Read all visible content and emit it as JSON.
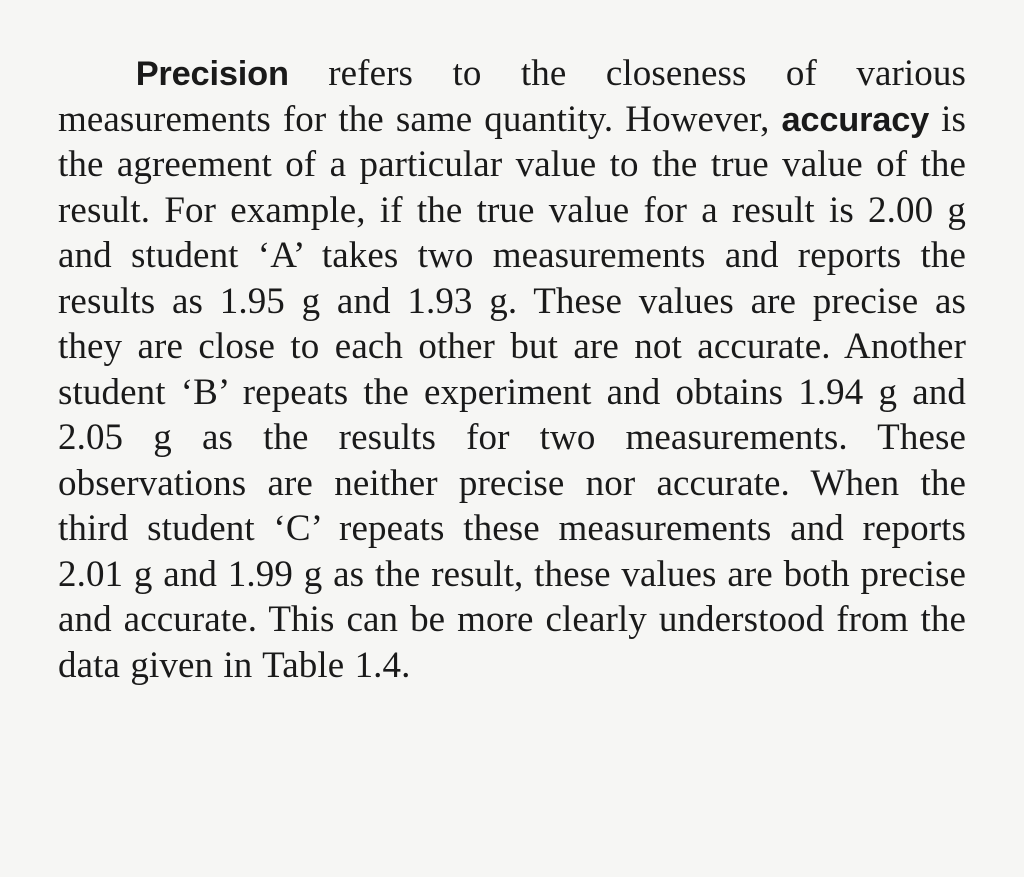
{
  "paragraph": {
    "term_precision": "Precision",
    "seg1": " refers to the closeness of various measurements for the same quantity. However, ",
    "term_accuracy": "accuracy",
    "seg2": " is the agreement of a particular value to the true value of the result. For example, if the true value for a result is 2.00 g and student ‘A’ takes two measurements and reports the results as 1.95 g and 1.93 g. These values are precise as they are close to each other but are not accurate. Another student ‘B’ repeats the experiment and obtains 1.94 g and 2.05 g as the results for two measurements. These observations are neither precise nor accurate. When the third student ‘C’ repeats these measurements and reports 2.01 g and 1.99 g as the result, these values are both precise and accurate. This can be more clearly understood from the data given in Table 1.4."
  }
}
